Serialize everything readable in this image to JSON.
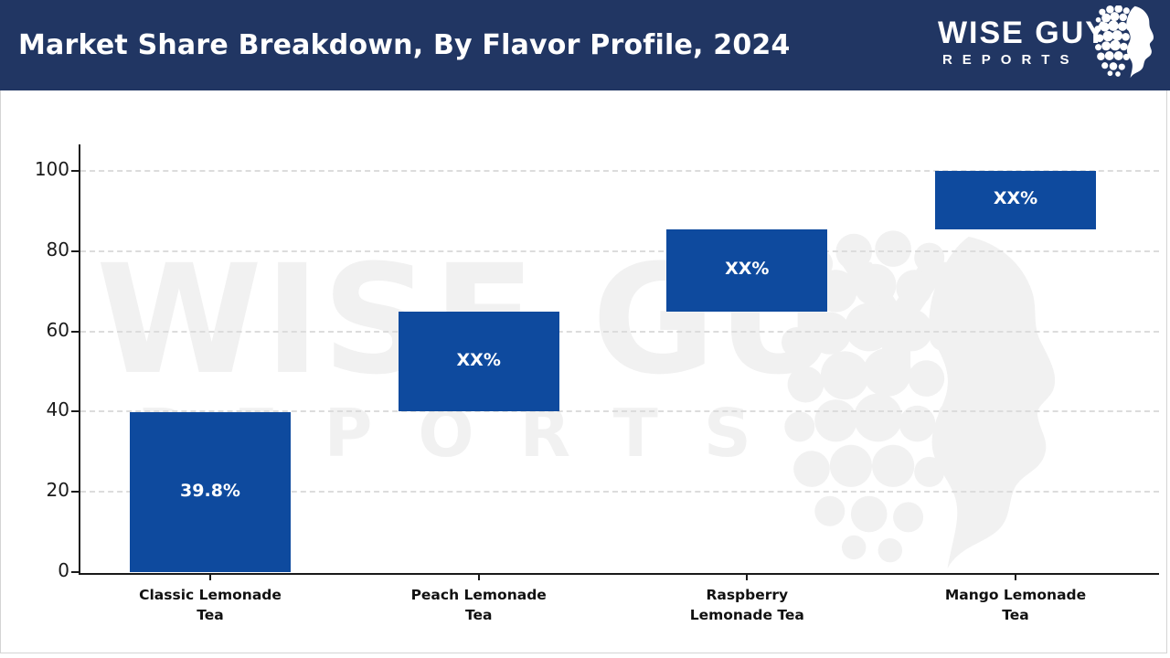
{
  "header": {
    "title": "Market Share Breakdown, By Flavor Profile, 2024"
  },
  "logo": {
    "line1": "WISE GUY",
    "line2": "REPORTS"
  },
  "watermark": {
    "line1": "WISE GUY",
    "line2": "REPORTS"
  },
  "colors": {
    "header_bg": "#213663",
    "bar": "#0e4a9e",
    "bar_label": "#ffffff",
    "grid": "#dcdcdc",
    "axis": "#1a1a1a",
    "watermark": "#f1f1f1",
    "frame": "#d4d4d4"
  },
  "chart_data": {
    "type": "bar",
    "subtype": "waterfall",
    "title": "Market Share Breakdown, By Flavor Profile, 2024",
    "categories": [
      "Classic Lemonade Tea",
      "Peach Lemonade Tea",
      "Raspberry Lemonade Tea",
      "Mango Lemonade Tea"
    ],
    "series": [
      {
        "name": "Market share (%)",
        "segments": [
          {
            "start": 0,
            "end": 39.8,
            "label": "39.8%"
          },
          {
            "start": 40,
            "end": 65,
            "label": "XX%"
          },
          {
            "start": 65,
            "end": 85.5,
            "label": "XX%"
          },
          {
            "start": 85.5,
            "end": 100,
            "label": "XX%"
          }
        ]
      }
    ],
    "xlabel": "",
    "ylabel": "",
    "ylim": [
      0,
      106
    ],
    "yticks": [
      0,
      20,
      40,
      60,
      80,
      100
    ],
    "grid": "horizontal-dashed",
    "legend": "none"
  }
}
